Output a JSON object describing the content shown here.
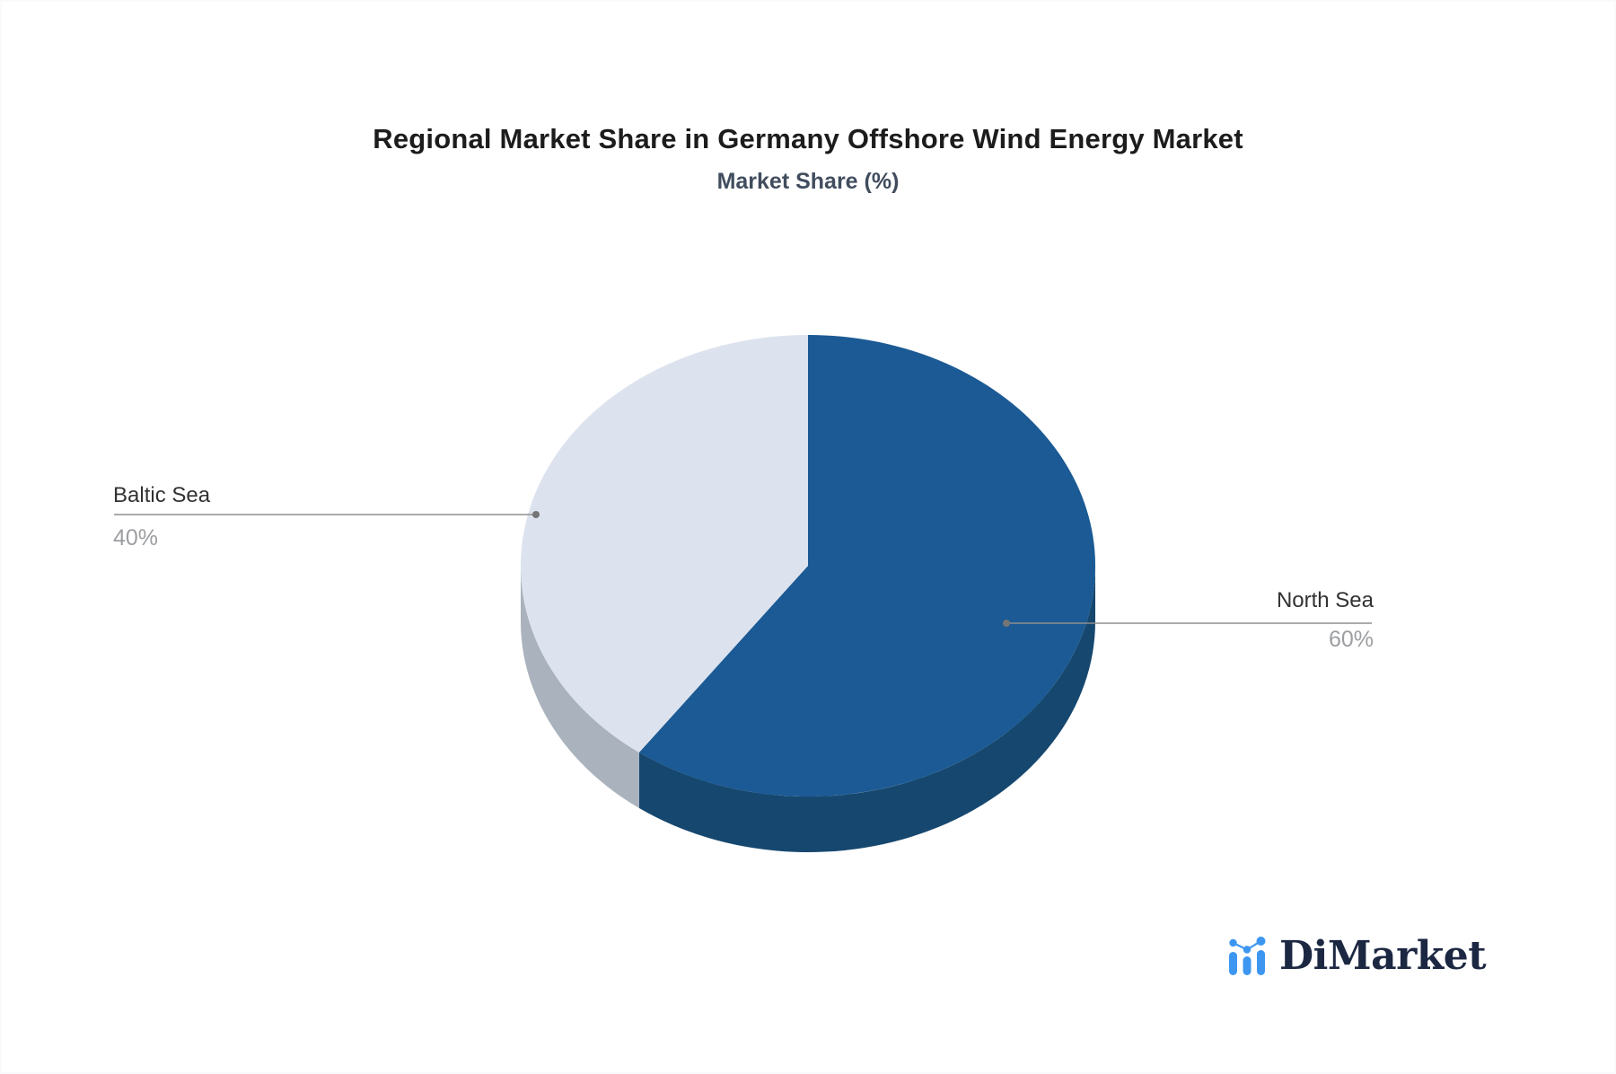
{
  "header": {
    "title": "Regional Market Share in Germany Offshore Wind Energy Market",
    "subtitle": "Market Share (%)"
  },
  "chart_data": {
    "type": "pie",
    "title": "Regional Market Share in Germany Offshore Wind Energy Market",
    "subtitle": "Market Share (%)",
    "unit": "%",
    "effect": "3d",
    "legend": "none",
    "labels": "callout",
    "start_angle_deg": 0,
    "direction": "clockwise",
    "slices": [
      {
        "label": "North Sea",
        "value": 60,
        "display_value": "60%",
        "color": "#1B5A94",
        "side_color": "#16476F",
        "label_side": "right"
      },
      {
        "label": "Baltic Sea",
        "value": 40,
        "display_value": "40%",
        "color": "#DDE3EE",
        "side_color": "#AAB2BD",
        "label_side": "left"
      }
    ]
  },
  "branding": {
    "logo_text": "DiMarket"
  },
  "colors": {
    "title-color": "#1c1c1c",
    "subtitle-color": "#414d5e",
    "label-color": "#323232",
    "percent-color": "#9c9ea1",
    "leader-line": "#8f8f8f",
    "leader-dot": "#757575",
    "logo-navy": "#1c2742",
    "accent-blue": "#3d97f1"
  }
}
